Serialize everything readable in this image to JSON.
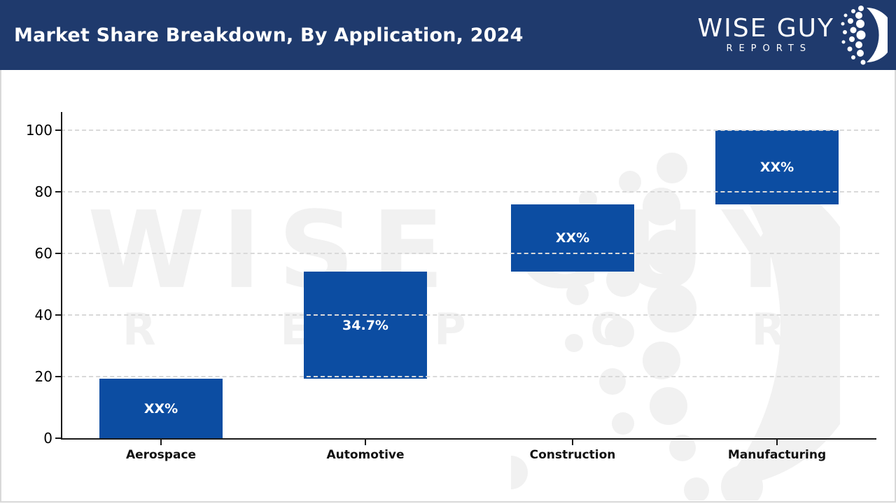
{
  "header": {
    "title": "Market Share Breakdown, By Application, 2024",
    "logo": {
      "line1": "WISE GUY",
      "line2": "REPORTS"
    }
  },
  "watermark": {
    "line1": "WISE GUY",
    "line2": "R E P O R T S"
  },
  "colors": {
    "header_bg": "#1f3a6d",
    "bar": "#0c4da2",
    "grid": "#d9d9d9",
    "axis": "#1a1a1a",
    "watermark": "#f1f1f1",
    "bar_label": "#ffffff"
  },
  "chart_data": {
    "type": "bar",
    "subtype": "waterfall-floating-bars",
    "title": "Market Share Breakdown, By Application, 2024",
    "xlabel": "",
    "ylabel": "",
    "categories": [
      "Aerospace",
      "Automotive",
      "Construction",
      "Manufacturing"
    ],
    "segments": [
      {
        "category": "Aerospace",
        "start": 0,
        "end": 19.3,
        "value": 19.3,
        "label": "XX%"
      },
      {
        "category": "Automotive",
        "start": 19.3,
        "end": 54.0,
        "value": 34.7,
        "label": "34.7%"
      },
      {
        "category": "Construction",
        "start": 54.0,
        "end": 76.0,
        "value": 22.0,
        "label": "XX%"
      },
      {
        "category": "Manufacturing",
        "start": 76.0,
        "end": 100.0,
        "value": 24.0,
        "label": "XX%"
      }
    ],
    "yticks": [
      0,
      20,
      40,
      60,
      80,
      100
    ],
    "ylim": [
      0,
      105
    ],
    "grid": "horizontal-dashed",
    "legend": "none"
  }
}
